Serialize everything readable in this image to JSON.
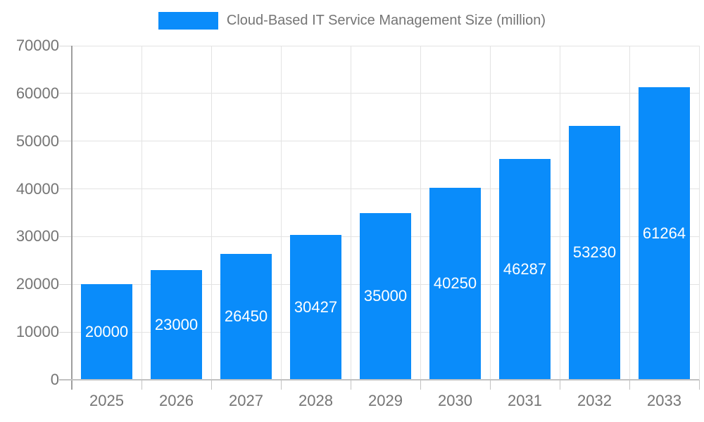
{
  "chart_data": {
    "type": "bar",
    "title": "Cloud-Based IT Service Management Size (million)",
    "legend_label": "Cloud-Based IT Service Management Size (million)",
    "legend_position": "top",
    "categories": [
      "2025",
      "2026",
      "2027",
      "2028",
      "2029",
      "2030",
      "2031",
      "2032",
      "2033"
    ],
    "values": [
      20000,
      23000,
      26450,
      30427,
      35000,
      40250,
      46287,
      53230,
      61264
    ],
    "xlabel": "",
    "ylabel": "",
    "ylim": [
      0,
      70000
    ],
    "yticks": [
      0,
      10000,
      20000,
      30000,
      40000,
      50000,
      60000,
      70000
    ],
    "grid": true,
    "colors": {
      "bar": "#0a8cfa",
      "gridline": "#e3e3e3",
      "y_axis_line": "#9e9e9e",
      "x_axis_line": "#c2c2c2",
      "tick": "#d9d9d9",
      "axis_text": "#757575",
      "bar_value_text": "#ffffff",
      "background": "#ffffff"
    }
  }
}
